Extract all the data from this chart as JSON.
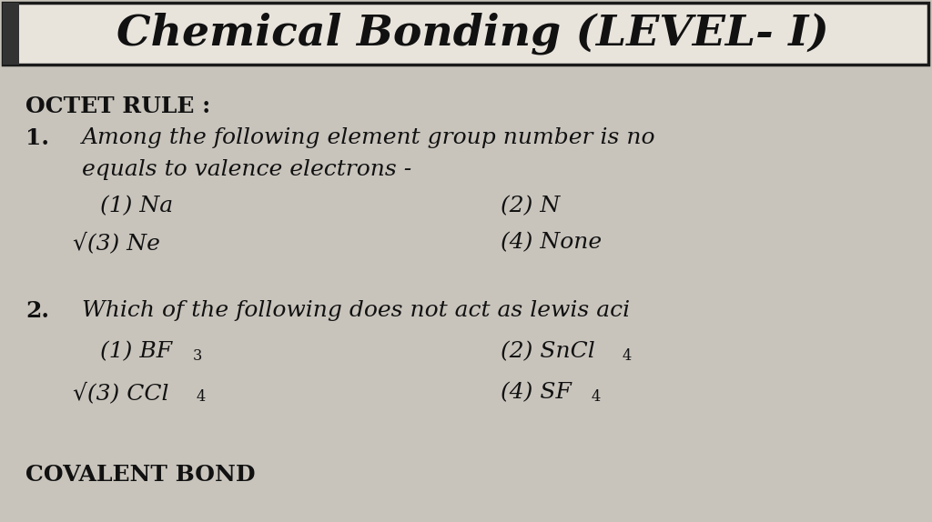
{
  "bg_color": "#c8c4bc",
  "header_bg": "#e8e4dc",
  "header_border_color": "#1a1a1a",
  "header_left_block_color": "#333333",
  "title_main": "Chemical Bonding",
  "title_sub": " (LEVEL- I)",
  "title_color": "#111111",
  "text_color": "#111111",
  "section_label": "OCTET RULE :",
  "q1_num": "1.",
  "q1_text": "Among the following element group number is no",
  "q1_text2": "equals to valence electrons -",
  "q1_opt1_pre": "(1) Na",
  "q1_opt2": "(2) N",
  "q1_opt3_pre": "√(3) Ne",
  "q1_opt4": "(4) None",
  "q2_num": "2.",
  "q2_text": "Which of the following does not act as lewis aci",
  "q2_opt1_base": "(1) BF",
  "q2_opt1_sub": "3",
  "q2_opt2_base": "(2) SnCl",
  "q2_opt2_sub": "4",
  "q2_opt3_base": "√(3) CCl",
  "q2_opt3_sub": "4",
  "q2_opt4_base": "(4) SF",
  "q2_opt4_sub": "4",
  "footer_text": "COVALENT BOND"
}
